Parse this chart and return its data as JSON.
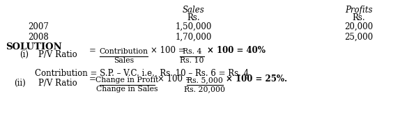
{
  "bg_color": "#ffffff",
  "title_sales": "Sales",
  "title_profits": "Profits",
  "subtitle_rs": "Rs.",
  "year1": "2007",
  "year2": "2008",
  "sales1": "1,50,000",
  "sales2": "1,70,000",
  "profit1": "20,000",
  "profit2": "25,000",
  "solution_label": "SOLUTION",
  "i_label": "(i)",
  "ii_label": "(ii)",
  "pv_ratio_label": "P/V Ratio",
  "eq_sign": "=",
  "contribution_num": "Contribution",
  "contribution_den": "Sales",
  "x100_eq": "× 100 =",
  "rs4_text": "Rs. 4",
  "rs10_text": "Rs. 10",
  "bold_result1": "× 100 = 40%",
  "contribution_eq": "Contribution = S.P. – V.C. i.e., Rs. 10 – Rs. 6 = Rs. 4",
  "change_profit_num": "Change in Profit",
  "change_sales_den": "Change in Sales",
  "rs5000_text": "Rs. 5,000",
  "rs20000_text": "Rs. 20,000",
  "bold_result2": "× 100 = 25%.",
  "fs": 8.5,
  "fs_small": 7.8
}
